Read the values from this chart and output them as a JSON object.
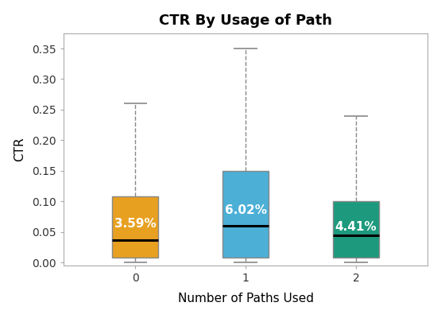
{
  "title": "CTR By Usage of Path",
  "xlabel": "Number of Paths Used",
  "ylabel": "CTR",
  "categories": [
    "0",
    "1",
    "2"
  ],
  "box_stats": [
    {
      "med": 0.037,
      "q1": 0.008,
      "q3": 0.108,
      "whislo": 0.0,
      "whishi": 0.26,
      "label": "3.59%",
      "color": "#E8A020"
    },
    {
      "med": 0.06,
      "q1": 0.008,
      "q3": 0.15,
      "whislo": 0.0,
      "whishi": 0.35,
      "label": "6.02%",
      "color": "#4BAFD6"
    },
    {
      "med": 0.045,
      "q1": 0.008,
      "q3": 0.1,
      "whislo": 0.0,
      "whishi": 0.24,
      "label": "4.41%",
      "color": "#1D9A7D"
    }
  ],
  "ylim": [
    -0.005,
    0.375
  ],
  "yticks": [
    0.0,
    0.05,
    0.1,
    0.15,
    0.2,
    0.25,
    0.3,
    0.35
  ],
  "background_color": "#FFFFFF",
  "plot_bg_color": "#FFFFFF",
  "title_fontsize": 13,
  "label_fontsize": 11,
  "tick_fontsize": 10,
  "spine_color": "#AAAAAA",
  "whisker_color": "#888888",
  "median_color": "#000000",
  "box_edge_color": "#888888"
}
